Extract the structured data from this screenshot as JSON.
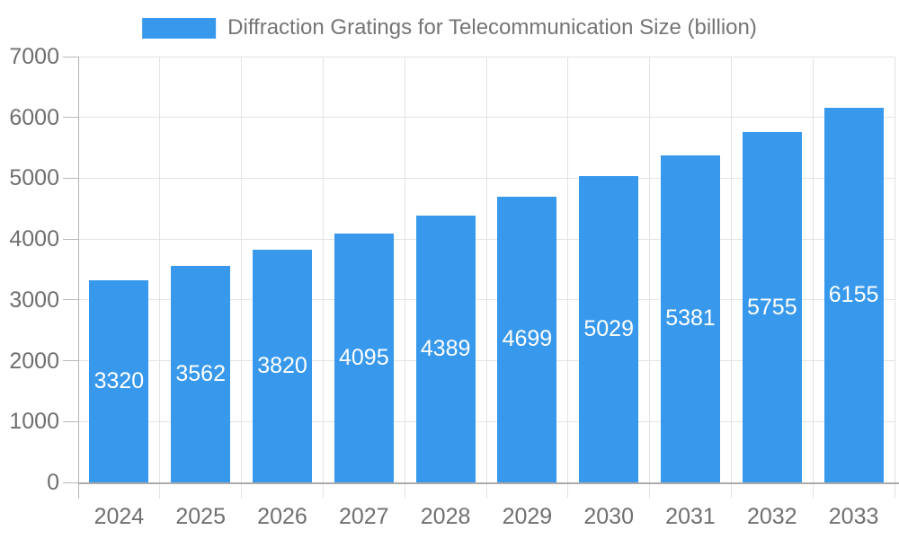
{
  "legend": {
    "label": "Diffraction Gratings for Telecommunication Size (billion)"
  },
  "chart_data": {
    "type": "bar",
    "title": "Diffraction Gratings for Telecommunication Size (billion)",
    "categories": [
      "2024",
      "2025",
      "2026",
      "2027",
      "2028",
      "2029",
      "2030",
      "2031",
      "2032",
      "2033"
    ],
    "series": [
      {
        "name": "Diffraction Gratings for Telecommunication Size (billion)",
        "values": [
          3320,
          3562,
          3820,
          4095,
          4389,
          4699,
          5029,
          5381,
          5755,
          6155
        ]
      }
    ],
    "xlabel": "",
    "ylabel": "",
    "ylim": [
      0,
      7000
    ],
    "y_ticks": [
      0,
      1000,
      2000,
      3000,
      4000,
      5000,
      6000,
      7000
    ],
    "grid": true,
    "legend_position": "top-center",
    "value_labels_position": "inside-center"
  },
  "colors": {
    "bar": "#3899ec",
    "value_label_text": "#ffffff",
    "legend_text": "#757575",
    "axis_label_text": "#6f6f6f",
    "gridline": "#e3e3e3",
    "y_axis_line": "#b3b3b3",
    "y_tick": "#b9b9b9",
    "x_axis_line": "#ababab",
    "background": "#ffffff"
  }
}
